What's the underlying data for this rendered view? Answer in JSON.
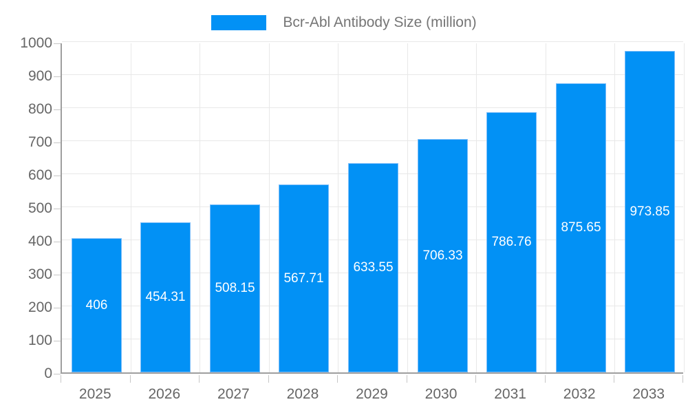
{
  "legend": {
    "label": "Bcr-Abl Antibody Size (million)"
  },
  "chart_data": {
    "type": "bar",
    "title": "",
    "xlabel": "",
    "ylabel": "",
    "categories": [
      "2025",
      "2026",
      "2027",
      "2028",
      "2029",
      "2030",
      "2031",
      "2032",
      "2033"
    ],
    "series": [
      {
        "name": "Bcr-Abl Antibody Size (million)",
        "values": [
          406,
          454.31,
          508.15,
          567.71,
          633.55,
          706.33,
          786.76,
          875.65,
          973.85
        ]
      }
    ],
    "bar_value_labels": [
      "406",
      "454.31",
      "508.15",
      "567.71",
      "633.55",
      "706.33",
      "786.76",
      "875.65",
      "973.85"
    ],
    "bar_label_placement": "inside-center",
    "yticks": [
      "0",
      "100",
      "200",
      "300",
      "400",
      "500",
      "600",
      "700",
      "800",
      "900",
      "1000"
    ],
    "ylim": [
      0,
      1000
    ],
    "grid": true,
    "vertical_gridlines_at_category_boundaries": true,
    "legend_position": "top-center",
    "colors": {
      "bar": "#0291f5",
      "bar_border": "#7dbefa",
      "grid": "#e8e8e8",
      "axis": "#9e9e9e",
      "tick": "#c6c6c6",
      "tick_text": "#666666",
      "legend_text": "#757575",
      "bar_label_text": "#ffffff",
      "background": "#ffffff"
    }
  }
}
